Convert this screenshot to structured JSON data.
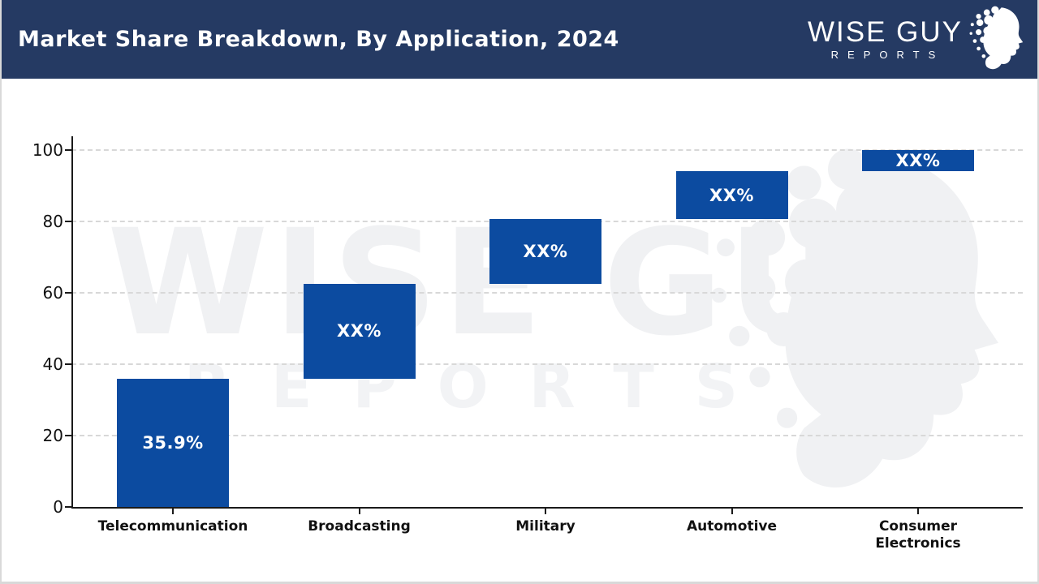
{
  "header": {
    "title": "Market Share Breakdown, By Application, 2024",
    "logo": {
      "line1": "WISE GUY",
      "line2": "REPORTS"
    }
  },
  "watermark": {
    "line1": "WISE GUY",
    "line2": "REPORTS"
  },
  "chart_data": {
    "type": "bar",
    "subtype": "waterfall",
    "title": "Market Share Breakdown, By Application, 2024",
    "categories": [
      "Telecommunication",
      "Broadcasting",
      "Military",
      "Automotive",
      "Consumer Electronics"
    ],
    "segments": [
      {
        "category": "Telecommunication",
        "tick_label": "Telecommunication",
        "start": 0,
        "end": 35.9,
        "label": "35.9%"
      },
      {
        "category": "Broadcasting",
        "tick_label": "Broadcasting",
        "start": 35.9,
        "end": 62.6,
        "label": "XX%"
      },
      {
        "category": "Military",
        "tick_label": "Military",
        "start": 62.6,
        "end": 80.6,
        "label": "XX%"
      },
      {
        "category": "Automotive",
        "tick_label": "Automotive",
        "start": 80.6,
        "end": 94.0,
        "label": "XX%"
      },
      {
        "category": "Consumer Electronics",
        "tick_label": "Consumer\nElectronics",
        "start": 94.0,
        "end": 100.0,
        "label": "XX%"
      }
    ],
    "y_ticks": [
      0,
      20,
      40,
      60,
      80,
      100
    ],
    "ylim": [
      0,
      103.5
    ],
    "xlabel": "",
    "ylabel": "",
    "grid": "horizontal dashed",
    "legend": "none",
    "bar_color": "#0c4ba0",
    "value_label_color": "#ffffff",
    "masked_value_text": "XX%"
  },
  "colors": {
    "header_background": "#253a63",
    "page_background": "#ffffff",
    "bar_blue": "#0c4ba0",
    "gridline_grey": "#d8d8d8",
    "axis_black": "#1a1a1a",
    "watermark_grey": "#f0f1f3",
    "page_border_grey": "#d9d9d9"
  }
}
